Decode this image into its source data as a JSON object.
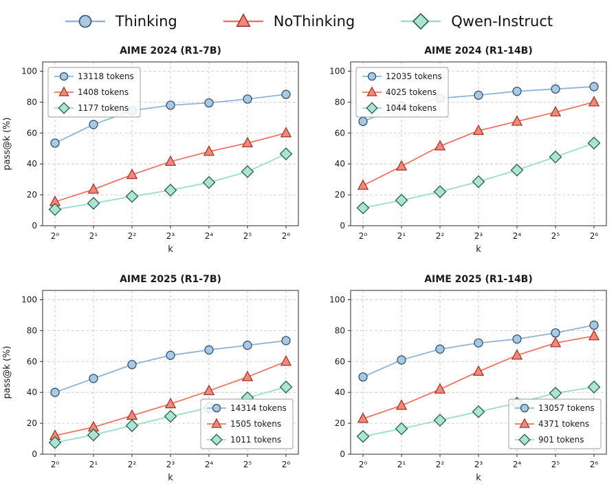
{
  "figure_legend": {
    "items": [
      {
        "label": "Thinking",
        "series": "Thinking"
      },
      {
        "label": "NoThinking",
        "series": "NoThinking"
      },
      {
        "label": "Qwen-Instruct",
        "series": "Qwen-Instruct"
      }
    ]
  },
  "series_styles": {
    "Thinking": {
      "marker": "circle",
      "line": "#8fb3d5",
      "fill": "#a9c9e2",
      "edge": "#30506e"
    },
    "NoThinking": {
      "marker": "triangle",
      "line": "#ec7465",
      "fill": "#f0897b",
      "edge": "#9e3a2c"
    },
    "Qwen-Instruct": {
      "marker": "diamond",
      "line": "#9cdcc6",
      "fill": "#ace4d1",
      "edge": "#265d51"
    }
  },
  "axes": {
    "xlabel": "k",
    "ylabel": "pass@k (%)",
    "y_ticks": [
      0,
      20,
      40,
      60,
      80,
      100
    ],
    "ylim": [
      0,
      106
    ],
    "x_tick_labels": [
      "2⁰",
      "2¹",
      "2²",
      "2³",
      "2⁴",
      "2⁵",
      "2⁶"
    ],
    "grid": "dashed",
    "grid_color": "#c4c4c4",
    "spine_color": "#2b2b2b",
    "text_color": "#1a1a1a"
  },
  "chart_data": [
    {
      "type": "line",
      "title": "AIME 2024 (R1-7B)",
      "x": [
        1,
        2,
        4,
        8,
        16,
        32,
        64
      ],
      "legend_position": "upper-left",
      "show_ylabel": true,
      "series": [
        {
          "name": "Thinking",
          "legend_label": "13118 tokens",
          "values": [
            53.5,
            65.5,
            74.5,
            78,
            79.5,
            82,
            85
          ]
        },
        {
          "name": "NoThinking",
          "legend_label": "1408 tokens",
          "values": [
            15.5,
            23.5,
            33,
            41.5,
            48,
            53.5,
            60
          ]
        },
        {
          "name": "Qwen-Instruct",
          "legend_label": "1177 tokens",
          "values": [
            10.5,
            14.5,
            19,
            23,
            28,
            35,
            46.5
          ]
        }
      ]
    },
    {
      "type": "line",
      "title": "AIME 2024 (R1-14B)",
      "x": [
        1,
        2,
        4,
        8,
        16,
        32,
        64
      ],
      "legend_position": "upper-left",
      "show_ylabel": false,
      "series": [
        {
          "name": "Thinking",
          "legend_label": "12035 tokens",
          "values": [
            67.5,
            77.5,
            82.5,
            84.5,
            87,
            88.5,
            90
          ]
        },
        {
          "name": "NoThinking",
          "legend_label": "4025 tokens",
          "values": [
            26,
            38.5,
            51.5,
            61.5,
            67.5,
            73.5,
            80
          ]
        },
        {
          "name": "Qwen-Instruct",
          "legend_label": "1044 tokens",
          "values": [
            11.5,
            16.5,
            22,
            28.5,
            36,
            44.5,
            53.5
          ]
        }
      ]
    },
    {
      "type": "line",
      "title": "AIME 2025 (R1-7B)",
      "x": [
        1,
        2,
        4,
        8,
        16,
        32,
        64
      ],
      "legend_position": "lower-right",
      "show_ylabel": true,
      "series": [
        {
          "name": "Thinking",
          "legend_label": "14314 tokens",
          "values": [
            40,
            49,
            58,
            64,
            67.5,
            70.5,
            73.5
          ]
        },
        {
          "name": "NoThinking",
          "legend_label": "1505 tokens",
          "values": [
            12,
            17.5,
            25,
            32.5,
            41,
            50,
            60
          ]
        },
        {
          "name": "Qwen-Instruct",
          "legend_label": "1011 tokens",
          "values": [
            7.5,
            12.5,
            18.5,
            24.5,
            30,
            36.5,
            43.5
          ]
        }
      ]
    },
    {
      "type": "line",
      "title": "AIME 2025 (R1-14B)",
      "x": [
        1,
        2,
        4,
        8,
        16,
        32,
        64
      ],
      "legend_position": "lower-right",
      "show_ylabel": false,
      "series": [
        {
          "name": "Thinking",
          "legend_label": "13057 tokens",
          "values": [
            50,
            61,
            68,
            72,
            74.5,
            78.5,
            83.5
          ]
        },
        {
          "name": "NoThinking",
          "legend_label": "4371 tokens",
          "values": [
            23,
            31.5,
            42,
            53.5,
            64,
            72,
            76.5
          ]
        },
        {
          "name": "Qwen-Instruct",
          "legend_label": "901 tokens",
          "values": [
            11.5,
            16.5,
            22,
            27.5,
            33,
            39.5,
            43.5
          ]
        }
      ]
    }
  ]
}
